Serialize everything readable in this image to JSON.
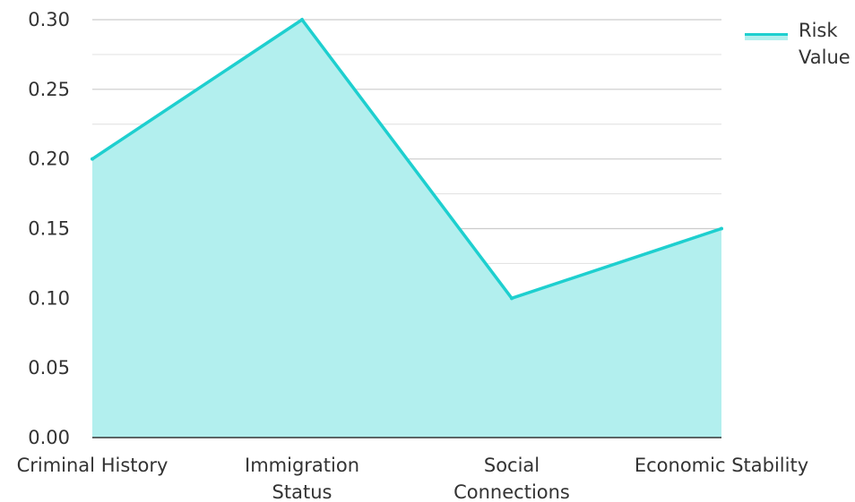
{
  "chart_data": {
    "type": "area",
    "categories": [
      "Criminal History",
      "Immigration Status",
      "Social Connections",
      "Economic Stability"
    ],
    "category_label_lines": [
      [
        "Criminal History"
      ],
      [
        "Immigration",
        "Status"
      ],
      [
        "Social",
        "Connections"
      ],
      [
        "Economic Stability"
      ]
    ],
    "series": [
      {
        "name": "Risk Value",
        "values": [
          0.2,
          0.3,
          0.1,
          0.15
        ]
      }
    ],
    "legend_label_lines": [
      "Risk",
      "Value"
    ],
    "ylim": [
      0,
      0.3
    ],
    "yticks": [
      "0.00",
      "0.05",
      "0.10",
      "0.15",
      "0.20",
      "0.25",
      "0.30"
    ],
    "grid": true,
    "legend_position": "top-right",
    "colors": {
      "line": "#1ecfcf",
      "fill": "#b2efee",
      "grid": "#cccccc",
      "axis": "#333333"
    }
  }
}
